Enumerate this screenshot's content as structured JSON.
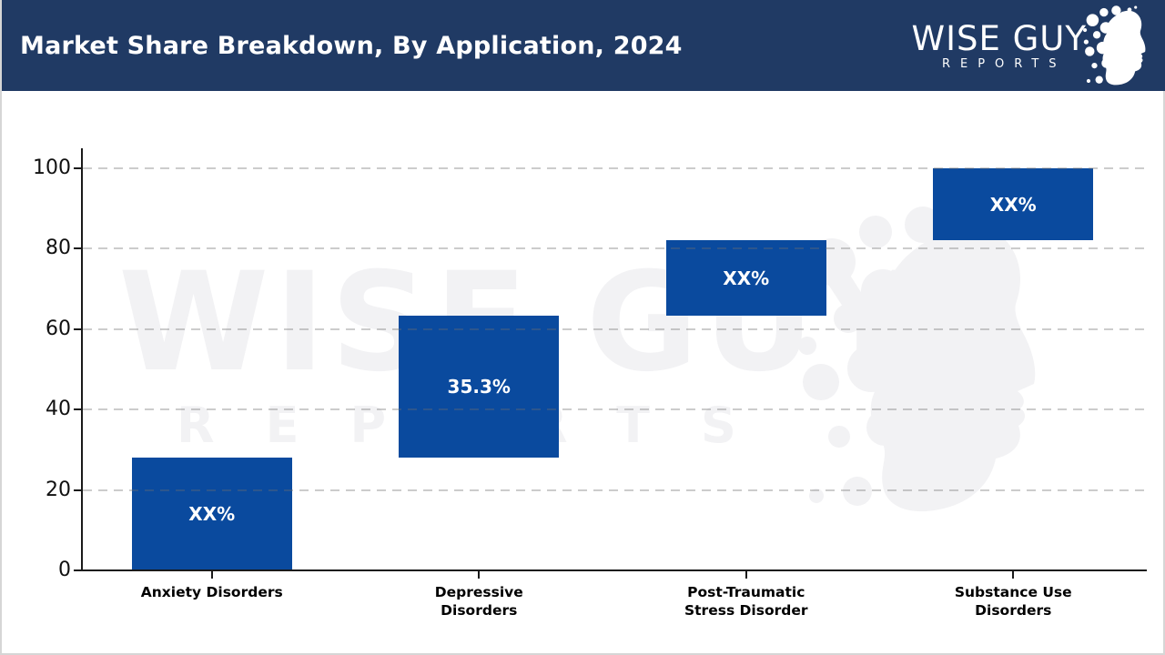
{
  "header": {
    "title": "Market Share Breakdown, By Application, 2024",
    "logo": {
      "line1": "WISE GUY",
      "line2": "REPORTS"
    }
  },
  "watermark": {
    "line1": "WISE GUY",
    "line2": "REPORTS"
  },
  "colors": {
    "header_bg": "#203a64",
    "bar_color": "#0a4a9e",
    "grid_color": "rgba(110,110,110,0.35)",
    "axis_color": "#1a1a1a",
    "tick_color": "#111111",
    "watermark_color": "#f2f2f4",
    "title_color": "#ffffff",
    "bar_label_color": "#ffffff"
  },
  "chart_data": {
    "type": "bar",
    "subtype": "waterfall-stacked-percentage",
    "title": "Market Share Breakdown, By Application, 2024",
    "categories": [
      "Anxiety Disorders",
      "Depressive\nDisorders",
      "Post-Traumatic\nStress Disorder",
      "Substance Use\nDisorders"
    ],
    "segments": [
      {
        "category": "Anxiety Disorders",
        "start": 0,
        "end": 28.1,
        "label": "XX%"
      },
      {
        "category": "Depressive Disorders",
        "start": 28.1,
        "end": 63.4,
        "label": "35.3%",
        "value": 35.3
      },
      {
        "category": "Post-Traumatic Stress Disorder",
        "start": 63.4,
        "end": 82.1,
        "label": "XX%"
      },
      {
        "category": "Substance Use Disorders",
        "start": 82.1,
        "end": 100,
        "label": "XX%"
      }
    ],
    "xlabel": "",
    "ylabel": "",
    "yticks": [
      0,
      20,
      40,
      60,
      80,
      100
    ],
    "ylim": [
      0,
      105
    ],
    "grid": "horizontal-dashed",
    "legend": "none"
  }
}
